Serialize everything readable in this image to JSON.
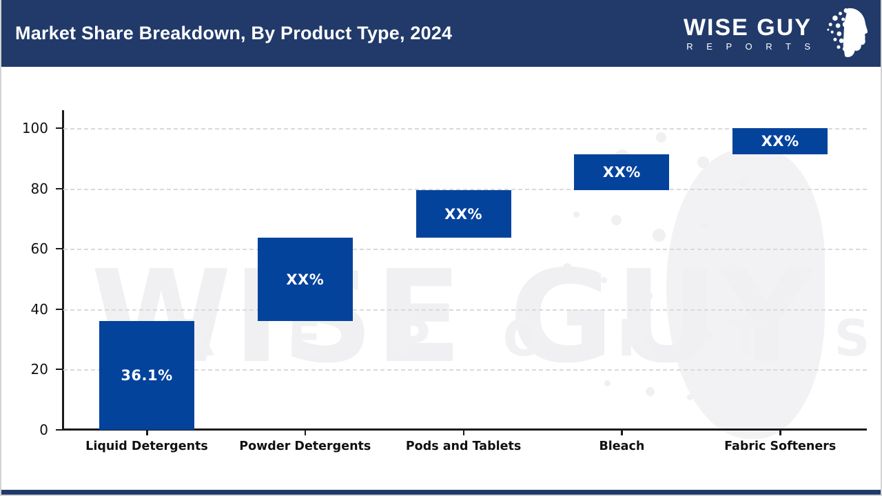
{
  "header": {
    "title": "Market Share Breakdown, By Product Type, 2024",
    "logo": {
      "line1": "WISE GUY",
      "line2": "R E P O R T S"
    }
  },
  "watermark": {
    "line1": "WISE GUY",
    "line2": "R E P O R T S"
  },
  "chart_data": {
    "type": "bar",
    "subtype": "waterfall (floating stacked-range bars)",
    "title": "Market Share Breakdown, By Product Type, 2024",
    "categories": [
      "Liquid Detergents",
      "Powder Detergents",
      "Pods and Tablets",
      "Bleach",
      "Fabric Softeners"
    ],
    "series": [
      {
        "name": "Market share (%)",
        "segments": [
          {
            "category": "Liquid Detergents",
            "start": 0,
            "end": 36.1,
            "label": "36.1%"
          },
          {
            "category": "Powder Detergents",
            "start": 36.1,
            "end": 63.6,
            "label": "XX%"
          },
          {
            "category": "Pods and Tablets",
            "start": 63.6,
            "end": 79.5,
            "label": "XX%"
          },
          {
            "category": "Bleach",
            "start": 79.5,
            "end": 91.4,
            "label": "XX%"
          },
          {
            "category": "Fabric Softeners",
            "start": 91.4,
            "end": 100,
            "label": "XX%"
          }
        ]
      }
    ],
    "xlabel": "",
    "ylabel": "",
    "ylim": [
      0,
      105
    ],
    "yticks": [
      0,
      20,
      40,
      60,
      80,
      100
    ],
    "grid": "horizontal dashed lines at each y tick",
    "legend": "none",
    "bar_color": "#04439C",
    "bar_label_color": "#ffffff",
    "header_color": "#213A6A"
  }
}
